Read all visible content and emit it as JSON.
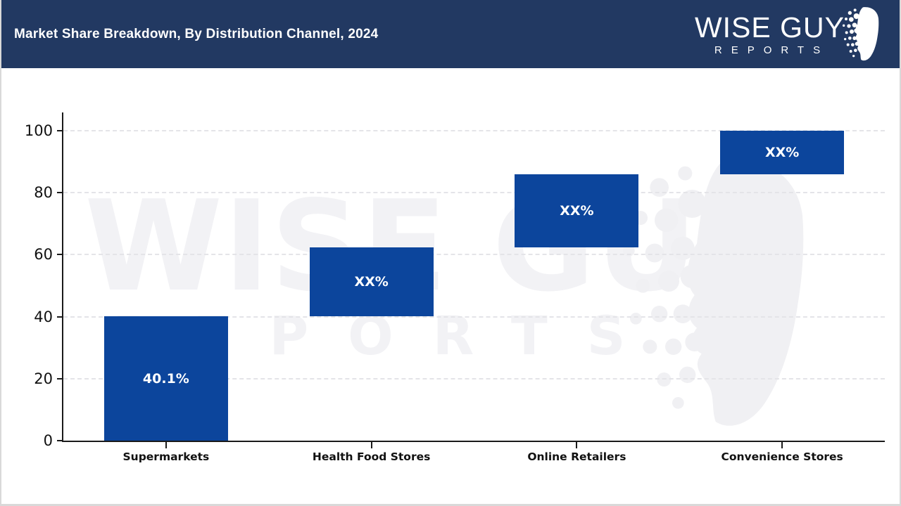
{
  "header": {
    "title": "Market Share Breakdown, By Distribution Channel, 2024",
    "logo_line1": "WISE GUY",
    "logo_line2": "REPORTS"
  },
  "watermark": {
    "line1": "WISE GUY",
    "line2": "REPORTS"
  },
  "colors": {
    "header_bg": "#223962",
    "bar": "#0c459c",
    "gridline": "#e4e4e8",
    "axis": "#1a1a1a",
    "watermark": "#f2f2f5",
    "frame_border": "#d9d9d9",
    "bar_label_text": "#ffffff"
  },
  "chart_data": {
    "type": "bar",
    "subtype": "waterfall",
    "title": "Market Share Breakdown, By Distribution Channel, 2024",
    "categories": [
      "Supermarkets",
      "Health Food Stores",
      "Online Retailers",
      "Convenience Stores"
    ],
    "segments": [
      {
        "category": "Supermarkets",
        "start": 0,
        "end": 40.1,
        "label": "40.1%"
      },
      {
        "category": "Health Food Stores",
        "start": 40.1,
        "end": 62.4,
        "label": "XX%"
      },
      {
        "category": "Online Retailers",
        "start": 62.4,
        "end": 86.0,
        "label": "XX%"
      },
      {
        "category": "Convenience Stores",
        "start": 86.0,
        "end": 100.0,
        "label": "XX%"
      }
    ],
    "xlabel": "",
    "ylabel": "",
    "ylim": [
      0,
      100
    ],
    "yticks": [
      0,
      20,
      40,
      60,
      80,
      100
    ],
    "grid": "horizontal-dashed",
    "legend": "none",
    "bar_color": "#0c459c"
  }
}
